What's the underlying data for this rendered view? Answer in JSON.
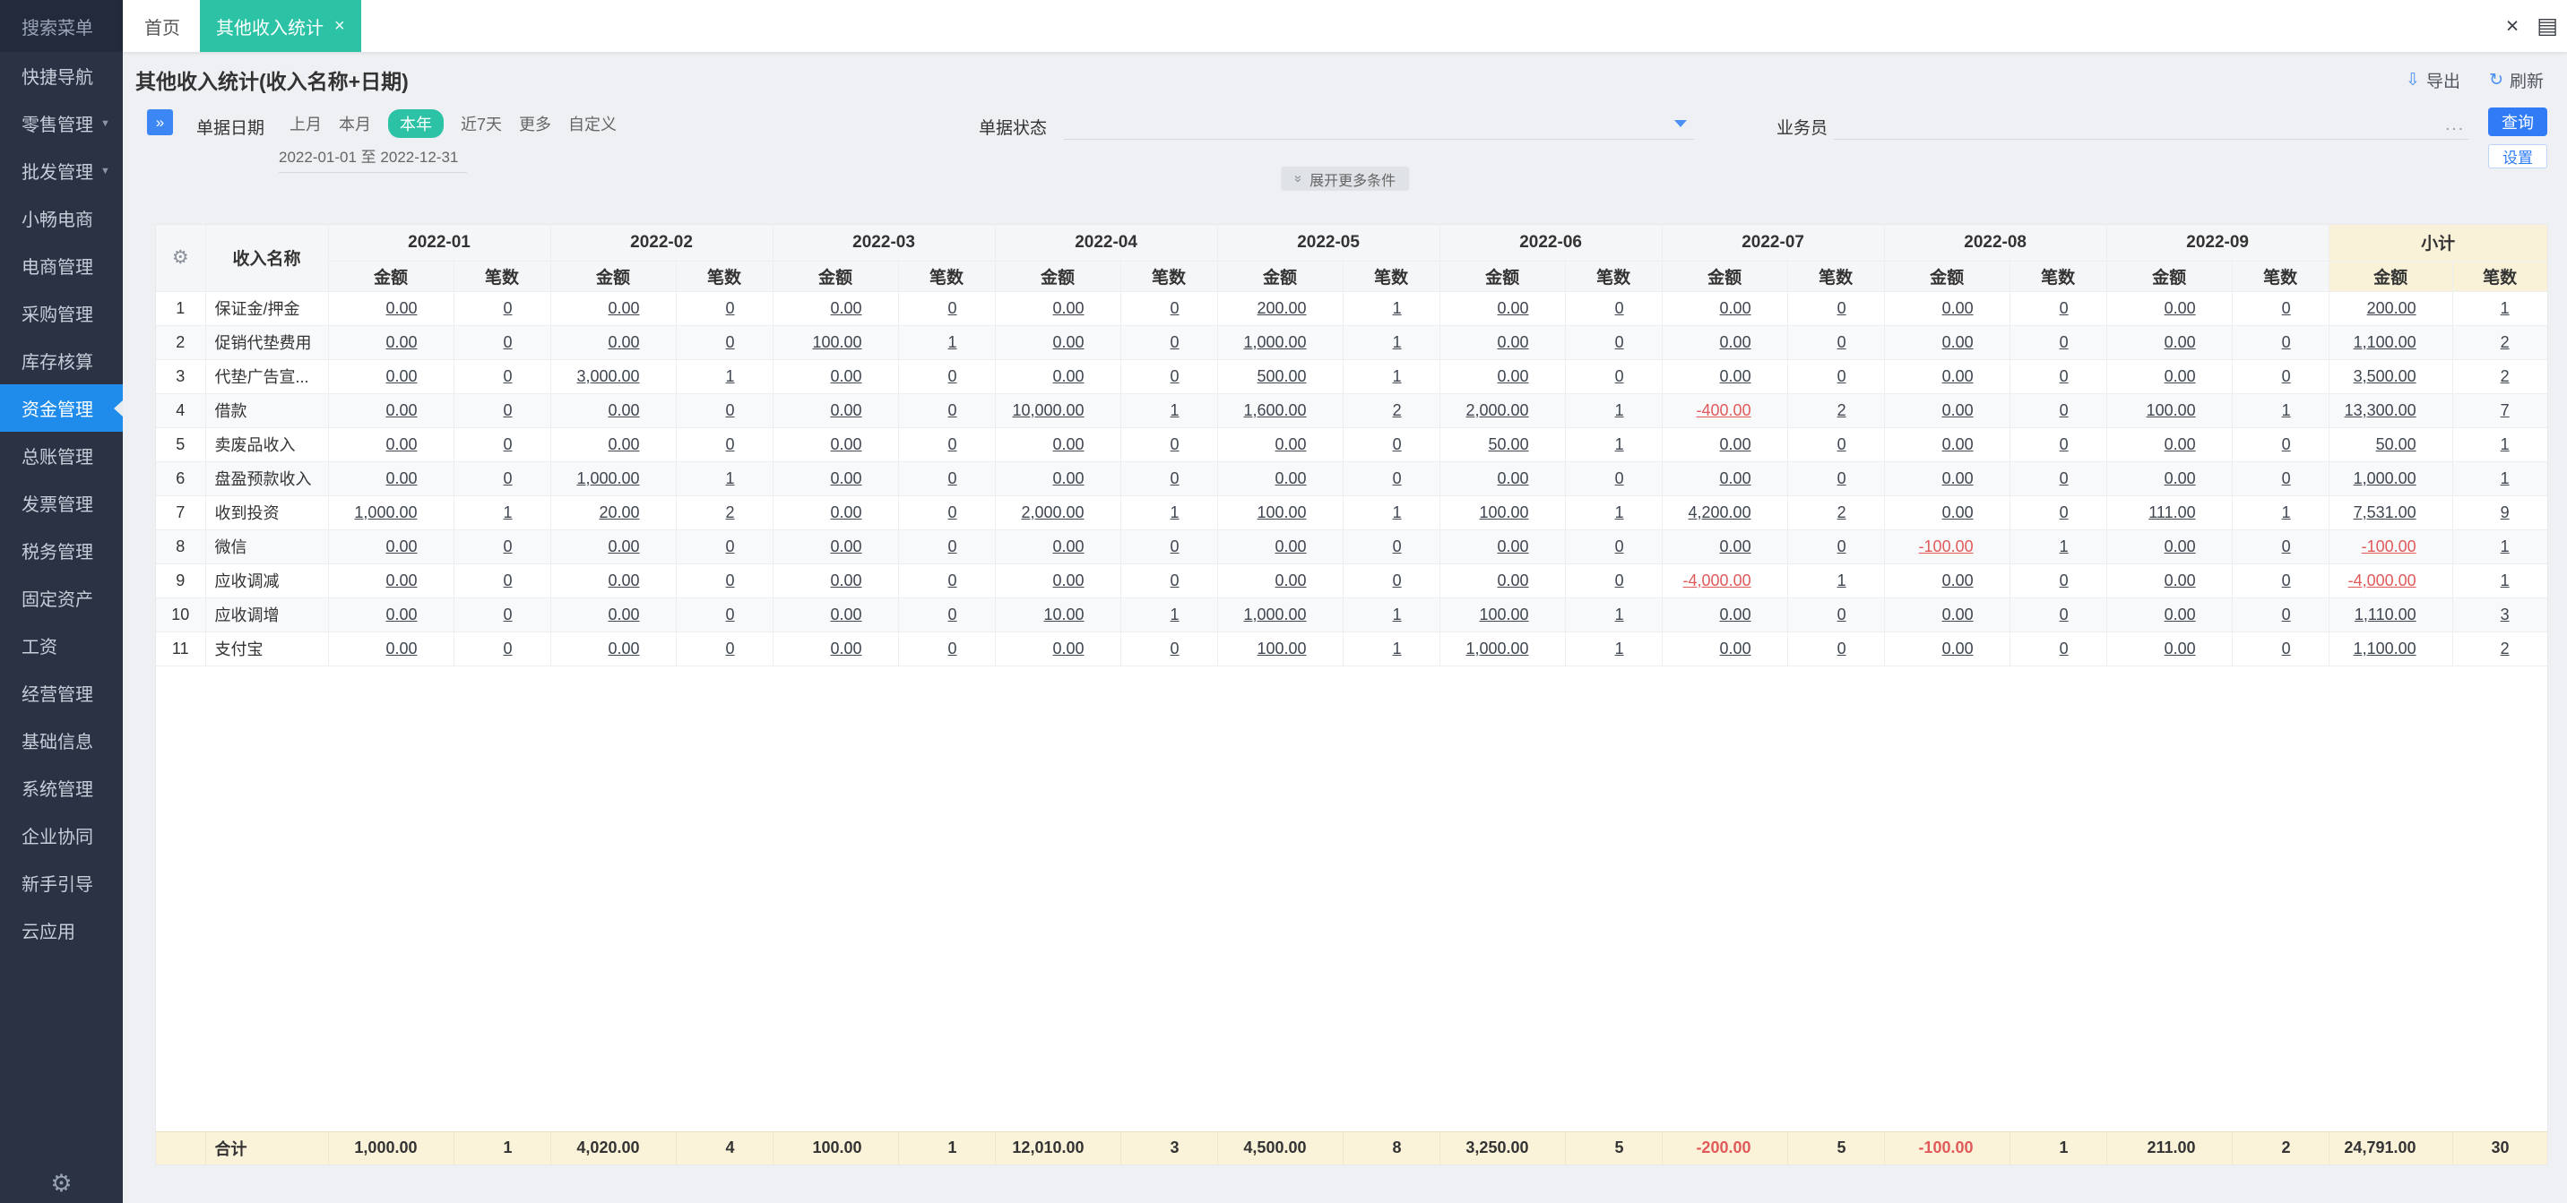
{
  "sidebar": {
    "search_label": "搜索菜单",
    "items": [
      {
        "label": "快捷导航"
      },
      {
        "label": "零售管理",
        "caret": true
      },
      {
        "label": "批发管理",
        "caret": true
      },
      {
        "label": "小畅电商"
      },
      {
        "label": "电商管理"
      },
      {
        "label": "采购管理"
      },
      {
        "label": "库存核算"
      },
      {
        "label": "资金管理",
        "active": true
      },
      {
        "label": "总账管理"
      },
      {
        "label": "发票管理"
      },
      {
        "label": "税务管理"
      },
      {
        "label": "固定资产"
      },
      {
        "label": "工资"
      },
      {
        "label": "经营管理"
      },
      {
        "label": "基础信息"
      },
      {
        "label": "系统管理"
      },
      {
        "label": "企业协同"
      },
      {
        "label": "新手引导"
      },
      {
        "label": "云应用"
      }
    ]
  },
  "tabbar": {
    "home_label": "首页",
    "active_label": "其他收入统计",
    "close_icon": "×",
    "menu_icon": "▤"
  },
  "page": {
    "title": "其他收入统计(收入名称+日期)",
    "export_label": "导出",
    "refresh_label": "刷新"
  },
  "filters": {
    "date_label": "单据日期",
    "date_options": [
      {
        "label": "上月"
      },
      {
        "label": "本月"
      },
      {
        "label": "本年",
        "active": true
      },
      {
        "label": "近7天"
      },
      {
        "label": "更多"
      },
      {
        "label": "自定义"
      }
    ],
    "date_range": "2022-01-01 至 2022-12-31",
    "status_label": "单据状态",
    "salesman_label": "业务员",
    "salesman_more": "...",
    "query_label": "查询",
    "settings_label": "设置",
    "expand_label": "展开更多条件"
  },
  "table": {
    "name_header": "收入名称",
    "amount_header": "金额",
    "count_header": "笔数",
    "subtotal_header": "小计",
    "months": [
      "2022-01",
      "2022-02",
      "2022-03",
      "2022-04",
      "2022-05",
      "2022-06",
      "2022-07",
      "2022-08",
      "2022-09"
    ],
    "rows": [
      {
        "index": 1,
        "name": "保证金/押金",
        "cells": [
          [
            "0.00",
            "0"
          ],
          [
            "0.00",
            "0"
          ],
          [
            "0.00",
            "0"
          ],
          [
            "0.00",
            "0"
          ],
          [
            "200.00",
            "1"
          ],
          [
            "0.00",
            "0"
          ],
          [
            "0.00",
            "0"
          ],
          [
            "0.00",
            "0"
          ],
          [
            "0.00",
            "0"
          ],
          [
            "200.00",
            "1"
          ]
        ]
      },
      {
        "index": 2,
        "name": "促销代垫费用",
        "cells": [
          [
            "0.00",
            "0"
          ],
          [
            "0.00",
            "0"
          ],
          [
            "100.00",
            "1"
          ],
          [
            "0.00",
            "0"
          ],
          [
            "1,000.00",
            "1"
          ],
          [
            "0.00",
            "0"
          ],
          [
            "0.00",
            "0"
          ],
          [
            "0.00",
            "0"
          ],
          [
            "0.00",
            "0"
          ],
          [
            "1,100.00",
            "2"
          ]
        ]
      },
      {
        "index": 3,
        "name": "代垫广告宣...",
        "cells": [
          [
            "0.00",
            "0"
          ],
          [
            "3,000.00",
            "1"
          ],
          [
            "0.00",
            "0"
          ],
          [
            "0.00",
            "0"
          ],
          [
            "500.00",
            "1"
          ],
          [
            "0.00",
            "0"
          ],
          [
            "0.00",
            "0"
          ],
          [
            "0.00",
            "0"
          ],
          [
            "0.00",
            "0"
          ],
          [
            "3,500.00",
            "2"
          ]
        ]
      },
      {
        "index": 4,
        "name": "借款",
        "cells": [
          [
            "0.00",
            "0"
          ],
          [
            "0.00",
            "0"
          ],
          [
            "0.00",
            "0"
          ],
          [
            "10,000.00",
            "1"
          ],
          [
            "1,600.00",
            "2"
          ],
          [
            "2,000.00",
            "1"
          ],
          [
            "-400.00",
            "2"
          ],
          [
            "0.00",
            "0"
          ],
          [
            "100.00",
            "1"
          ],
          [
            "13,300.00",
            "7"
          ]
        ]
      },
      {
        "index": 5,
        "name": "卖废品收入",
        "cells": [
          [
            "0.00",
            "0"
          ],
          [
            "0.00",
            "0"
          ],
          [
            "0.00",
            "0"
          ],
          [
            "0.00",
            "0"
          ],
          [
            "0.00",
            "0"
          ],
          [
            "50.00",
            "1"
          ],
          [
            "0.00",
            "0"
          ],
          [
            "0.00",
            "0"
          ],
          [
            "0.00",
            "0"
          ],
          [
            "50.00",
            "1"
          ]
        ]
      },
      {
        "index": 6,
        "name": "盘盈预款收入",
        "cells": [
          [
            "0.00",
            "0"
          ],
          [
            "1,000.00",
            "1"
          ],
          [
            "0.00",
            "0"
          ],
          [
            "0.00",
            "0"
          ],
          [
            "0.00",
            "0"
          ],
          [
            "0.00",
            "0"
          ],
          [
            "0.00",
            "0"
          ],
          [
            "0.00",
            "0"
          ],
          [
            "0.00",
            "0"
          ],
          [
            "1,000.00",
            "1"
          ]
        ]
      },
      {
        "index": 7,
        "name": "收到投资",
        "cells": [
          [
            "1,000.00",
            "1"
          ],
          [
            "20.00",
            "2"
          ],
          [
            "0.00",
            "0"
          ],
          [
            "2,000.00",
            "1"
          ],
          [
            "100.00",
            "1"
          ],
          [
            "100.00",
            "1"
          ],
          [
            "4,200.00",
            "2"
          ],
          [
            "0.00",
            "0"
          ],
          [
            "111.00",
            "1"
          ],
          [
            "7,531.00",
            "9"
          ]
        ]
      },
      {
        "index": 8,
        "name": "微信",
        "cells": [
          [
            "0.00",
            "0"
          ],
          [
            "0.00",
            "0"
          ],
          [
            "0.00",
            "0"
          ],
          [
            "0.00",
            "0"
          ],
          [
            "0.00",
            "0"
          ],
          [
            "0.00",
            "0"
          ],
          [
            "0.00",
            "0"
          ],
          [
            "-100.00",
            "1"
          ],
          [
            "0.00",
            "0"
          ],
          [
            "-100.00",
            "1"
          ]
        ]
      },
      {
        "index": 9,
        "name": "应收调减",
        "cells": [
          [
            "0.00",
            "0"
          ],
          [
            "0.00",
            "0"
          ],
          [
            "0.00",
            "0"
          ],
          [
            "0.00",
            "0"
          ],
          [
            "0.00",
            "0"
          ],
          [
            "0.00",
            "0"
          ],
          [
            "-4,000.00",
            "1"
          ],
          [
            "0.00",
            "0"
          ],
          [
            "0.00",
            "0"
          ],
          [
            "-4,000.00",
            "1"
          ]
        ]
      },
      {
        "index": 10,
        "name": "应收调增",
        "cells": [
          [
            "0.00",
            "0"
          ],
          [
            "0.00",
            "0"
          ],
          [
            "0.00",
            "0"
          ],
          [
            "10.00",
            "1"
          ],
          [
            "1,000.00",
            "1"
          ],
          [
            "100.00",
            "1"
          ],
          [
            "0.00",
            "0"
          ],
          [
            "0.00",
            "0"
          ],
          [
            "0.00",
            "0"
          ],
          [
            "1,110.00",
            "3"
          ]
        ]
      },
      {
        "index": 11,
        "name": "支付宝",
        "cells": [
          [
            "0.00",
            "0"
          ],
          [
            "0.00",
            "0"
          ],
          [
            "0.00",
            "0"
          ],
          [
            "0.00",
            "0"
          ],
          [
            "100.00",
            "1"
          ],
          [
            "1,000.00",
            "1"
          ],
          [
            "0.00",
            "0"
          ],
          [
            "0.00",
            "0"
          ],
          [
            "0.00",
            "0"
          ],
          [
            "1,100.00",
            "2"
          ]
        ]
      }
    ],
    "footer": {
      "label": "合计",
      "cells": [
        [
          "1,000.00",
          "1"
        ],
        [
          "4,020.00",
          "4"
        ],
        [
          "100.00",
          "1"
        ],
        [
          "12,010.00",
          "3"
        ],
        [
          "4,500.00",
          "8"
        ],
        [
          "3,250.00",
          "5"
        ],
        [
          "-200.00",
          "5"
        ],
        [
          "-100.00",
          "1"
        ],
        [
          "211.00",
          "2"
        ],
        [
          "24,791.00",
          "30"
        ]
      ]
    }
  }
}
